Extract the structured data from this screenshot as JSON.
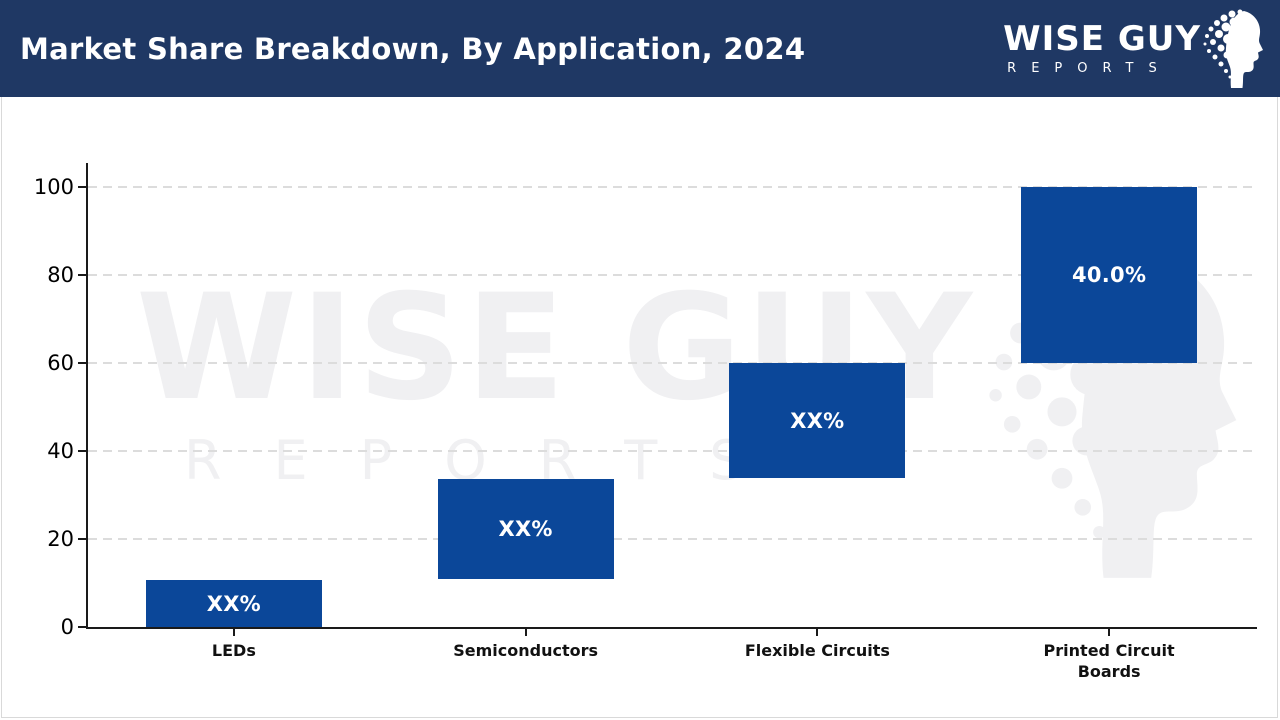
{
  "header": {
    "title": "Market Share Breakdown, By Application, 2024",
    "logo_line1": "WISE GUY",
    "logo_line2": "REPORTS"
  },
  "watermark": {
    "line1": "WISE GUY",
    "line2": "REPORTS"
  },
  "colors": {
    "header_bg": "#1f3864",
    "bar": "#0b4799",
    "grid": "#dcdcdc",
    "axis": "#1a1a1a",
    "watermark": "#f0f0f2"
  },
  "chart_data": {
    "type": "bar",
    "subtype": "waterfall",
    "title": "Market Share Breakdown, By Application, 2024",
    "categories": [
      "LEDs",
      "Semiconductors",
      "Flexible Circuits",
      "Printed Circuit Boards"
    ],
    "bars": [
      {
        "category": "LEDs",
        "start": 0,
        "end": 10.6,
        "label": "XX%"
      },
      {
        "category": "Semiconductors",
        "start": 10.8,
        "end": 33.6,
        "label": "XX%"
      },
      {
        "category": "Flexible Circuits",
        "start": 33.8,
        "end": 60.0,
        "label": "XX%"
      },
      {
        "category": "Printed Circuit Boards",
        "start": 60.0,
        "end": 100.0,
        "label": "40.0%"
      }
    ],
    "ylim": [
      0,
      100
    ],
    "yticks": [
      0,
      20,
      40,
      60,
      80,
      100
    ],
    "xlabel": "",
    "ylabel": "",
    "grid": "horizontal-dashed",
    "legend": "none"
  }
}
